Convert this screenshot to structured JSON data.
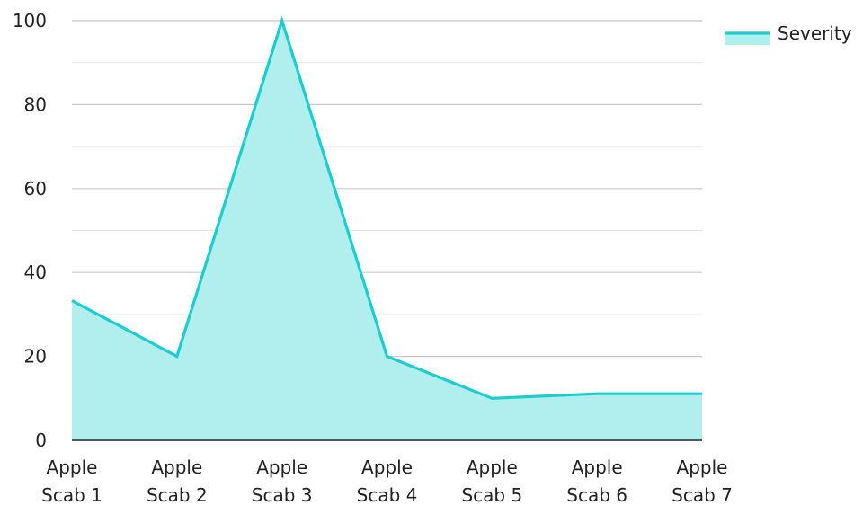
{
  "chart_data": {
    "type": "area",
    "categories": [
      [
        "Apple",
        "Scab 1"
      ],
      [
        "Apple",
        "Scab 2"
      ],
      [
        "Apple",
        "Scab 3"
      ],
      [
        "Apple",
        "Scab 4"
      ],
      [
        "Apple",
        "Scab 5"
      ],
      [
        "Apple",
        "Scab 6"
      ],
      [
        "Apple",
        "Scab 7"
      ]
    ],
    "series": [
      {
        "name": "Severity",
        "values": [
          33.3,
          20,
          100,
          20,
          10,
          11.1,
          11.1
        ],
        "line_color": "#1ccdd0",
        "fill_color": "#b1eeee"
      }
    ],
    "title": "",
    "xlabel": "",
    "ylabel": "",
    "ylim": [
      0,
      100
    ],
    "yticks": [
      0,
      20,
      40,
      60,
      80,
      100
    ],
    "grid": true,
    "legend_position": "top-right",
    "colors": {
      "gridline": "#d0d0d0",
      "axis": "#222222",
      "text": "#222222"
    }
  }
}
